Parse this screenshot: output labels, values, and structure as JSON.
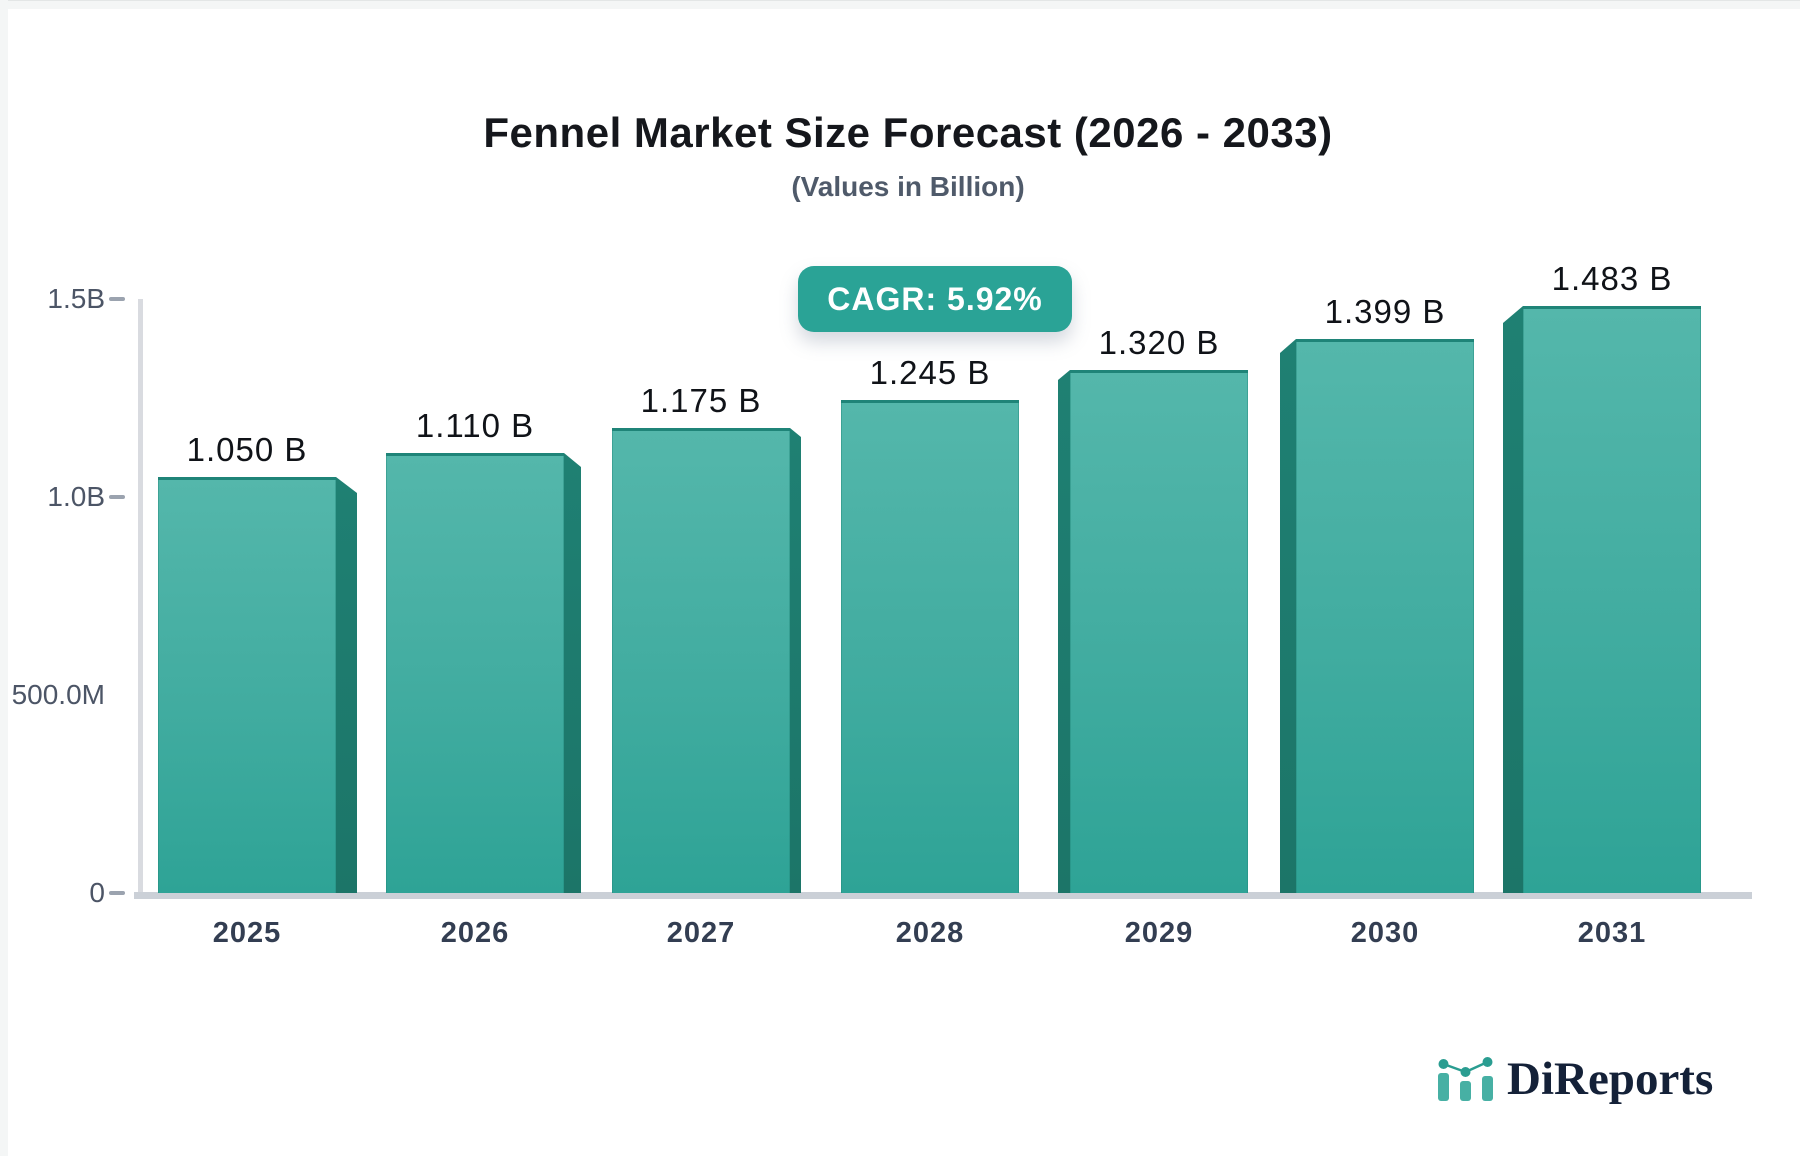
{
  "title": "Fennel Market Size Forecast (2026 - 2033)",
  "subtitle": "(Values in Billion)",
  "badge": {
    "label": "CAGR: 5.92%",
    "bg_color": "#2aa396",
    "text_color": "#ffffff"
  },
  "brand": {
    "name": "DiReports",
    "icon": "bar-chart-logo-icon",
    "icon_color": "#2a9d91",
    "text_color": "#142138"
  },
  "colors": {
    "bar_face_top": "#54b7ab",
    "bar_face_bottom": "#2ea396",
    "bar_side_dark": "#1f8073",
    "bar_top_border": "#1f8478",
    "axis_line": "#cbd0d7",
    "tick_dash": "#9ba3af",
    "y_label_text": "#4c5566",
    "x_label_text": "#333e52",
    "value_label_text": "#101318",
    "title_text": "#15171c",
    "subtitle_text": "#4f5a6a"
  },
  "chart_data": {
    "type": "bar",
    "title": "Fennel Market Size Forecast (2026 - 2033)",
    "subtitle": "(Values in Billion)",
    "annotation": "CAGR: 5.92%",
    "categories": [
      "2025",
      "2026",
      "2027",
      "2028",
      "2029",
      "2030",
      "2031"
    ],
    "values_billion": [
      1.05,
      1.11,
      1.175,
      1.245,
      1.32,
      1.399,
      1.483
    ],
    "bar_labels": [
      "1.050 B",
      "1.110 B",
      "1.175 B",
      "1.245 B",
      "1.320 B",
      "1.399 B",
      "1.483 B"
    ],
    "xlabel": "",
    "ylabel": "",
    "y_ticks": [
      {
        "label": "1.5B",
        "value_billion": 1.5,
        "has_dash": true
      },
      {
        "label": "1.0B",
        "value_billion": 1.0,
        "has_dash": true
      },
      {
        "label": "500.0M",
        "value_billion": 0.5,
        "has_dash": false
      },
      {
        "label": "0",
        "value_billion": 0.0,
        "has_dash": true
      }
    ],
    "ylim_billion": [
      0,
      1.5
    ],
    "grid": false,
    "legend": false,
    "bar_style": "pseudo-3d-perspective"
  }
}
